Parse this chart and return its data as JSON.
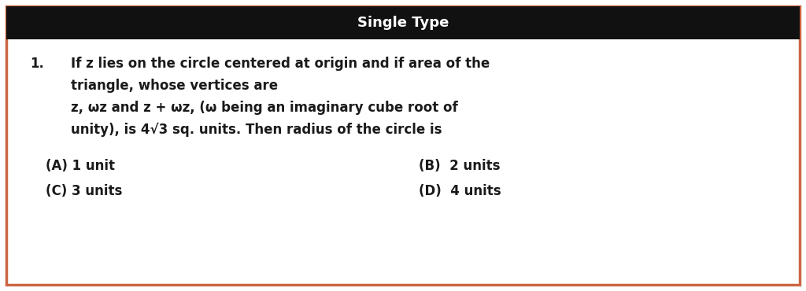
{
  "title": "Single Type",
  "title_bg": "#111111",
  "title_color": "#ffffff",
  "title_fontsize": 13,
  "question_number": "1.",
  "question_lines": [
    "If z lies on the circle centered at origin and if area of the",
    "triangle, whose vertices are",
    "z, ωz and z + ωz, (ω being an imaginary cube root of",
    "unity), is 4√3 sq. units. Then radius of the circle is"
  ],
  "options": [
    [
      "(A) 1 unit",
      "(B)  2 units"
    ],
    [
      "(C) 3 units",
      "(D)  4 units"
    ]
  ],
  "bg_color": "#ffffff",
  "border_color": "#cc6644",
  "text_color": "#1a1a1a",
  "question_fontsize": 12,
  "option_fontsize": 12,
  "fig_width": 10.24,
  "fig_height": 3.7,
  "dpi": 100
}
